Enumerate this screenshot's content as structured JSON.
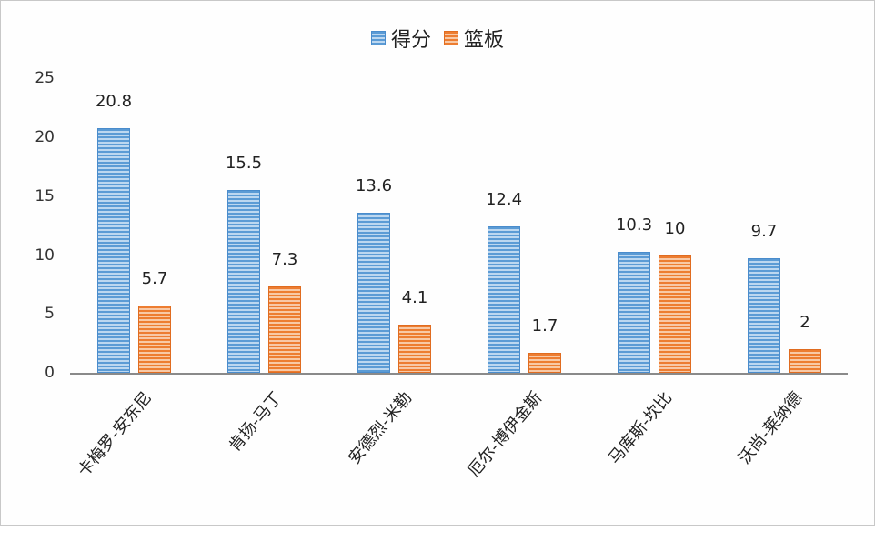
{
  "chart_data": {
    "type": "bar",
    "title": "",
    "categories": [
      "卡梅罗-安东尼",
      "肯扬-马丁",
      "安德烈-米勒",
      "厄尔-博伊金斯",
      "马库斯-坎比",
      "沃尚-莱纳德"
    ],
    "series": [
      {
        "name": "得分",
        "color": "#5b9bd5",
        "values": [
          20.8,
          15.5,
          13.6,
          12.4,
          10.3,
          9.7
        ],
        "labels": [
          "20.8",
          "15.5",
          "13.6",
          "12.4",
          "10.3",
          "9.7"
        ]
      },
      {
        "name": "篮板",
        "color": "#ed7d31",
        "values": [
          5.7,
          7.3,
          4.1,
          1.7,
          10,
          2
        ],
        "labels": [
          "5.7",
          "7.3",
          "4.1",
          "1.7",
          "10",
          "2"
        ]
      }
    ],
    "yticks": [
      "0",
      "5",
      "10",
      "15",
      "20",
      "25"
    ],
    "ylim": [
      0,
      25
    ],
    "xlabel": "",
    "ylabel": "",
    "grid": false,
    "legend_position": "top"
  }
}
